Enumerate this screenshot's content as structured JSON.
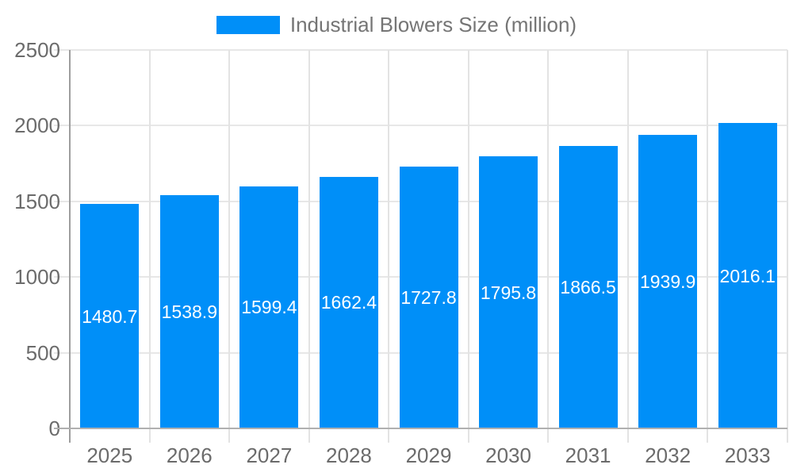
{
  "chart_data": {
    "type": "bar",
    "title": "",
    "xlabel": "",
    "ylabel": "",
    "legend": {
      "label": "Industrial Blowers Size (million)",
      "position": "top"
    },
    "categories": [
      "2025",
      "2026",
      "2027",
      "2028",
      "2029",
      "2030",
      "2031",
      "2032",
      "2033"
    ],
    "series": [
      {
        "name": "Industrial Blowers Size (million)",
        "values": [
          1480.7,
          1538.9,
          1599.4,
          1662.4,
          1727.8,
          1795.8,
          1866.5,
          1939.9,
          2016.1
        ]
      }
    ],
    "value_labels": [
      "1480.7",
      "1538.9",
      "1599.4",
      "1662.4",
      "1727.8",
      "1795.8",
      "1866.5",
      "1939.9",
      "2016.1"
    ],
    "ylim": [
      0,
      2500
    ],
    "yticks": [
      0,
      500,
      1000,
      1500,
      2000,
      2500
    ],
    "grid": true,
    "colors": {
      "bar": "#008ff8",
      "value_label_text": "#ffffff",
      "axis_tick_text": "#6b6b6b",
      "legend_text": "#757575",
      "h_gridline": "#e7e7e7",
      "v_gridline": "#e3e3e3",
      "y_axis_line": "#9e9e9e",
      "x_axis_line": "#b0b0b0"
    }
  }
}
